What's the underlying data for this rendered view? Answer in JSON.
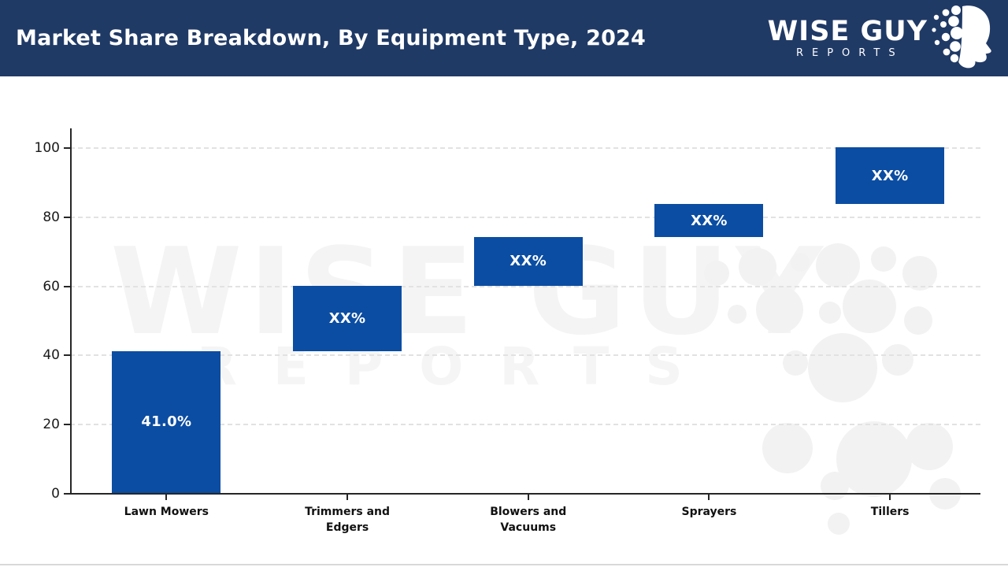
{
  "header": {
    "title": "Market Share Breakdown, By Equipment Type, 2024",
    "bg_color": "#203a66",
    "logo": {
      "line1": "WISE GUY",
      "line2": "REPORTS"
    }
  },
  "watermark": {
    "line1": "WISE GUY",
    "line2": "REPORTS"
  },
  "chart_data": {
    "type": "bar",
    "variant": "waterfall",
    "title": "Market Share Breakdown, By Equipment Type, 2024",
    "categories": [
      "Lawn Mowers",
      "Trimmers and Edgers",
      "Blowers and Vacuums",
      "Sprayers",
      "Tillers"
    ],
    "category_lines": [
      [
        "Lawn Mowers"
      ],
      [
        "Trimmers and",
        "Edgers"
      ],
      [
        "Blowers and",
        "Vacuums"
      ],
      [
        "Sprayers"
      ],
      [
        "Tillers"
      ]
    ],
    "segments": [
      {
        "category": "Lawn Mowers",
        "start": 0,
        "end": 41,
        "value": 41.0,
        "label": "41.0%"
      },
      {
        "category": "Trimmers and Edgers",
        "start": 41,
        "end": 60,
        "value": 19.0,
        "label": "XX%"
      },
      {
        "category": "Blowers and Vacuums",
        "start": 60,
        "end": 74,
        "value": 14.0,
        "label": "XX%"
      },
      {
        "category": "Sprayers",
        "start": 74,
        "end": 83.5,
        "value": 9.5,
        "label": "XX%"
      },
      {
        "category": "Tillers",
        "start": 83.5,
        "end": 100,
        "value": 16.5,
        "label": "XX%"
      }
    ],
    "yticks": [
      0,
      20,
      40,
      60,
      80,
      100
    ],
    "ylim": [
      0,
      105
    ],
    "grid": "dashed-horizontal",
    "legend": "none",
    "bar_color": "#0b4da2",
    "bar_label_color": "#ffffff",
    "axis_color": "#262626"
  }
}
